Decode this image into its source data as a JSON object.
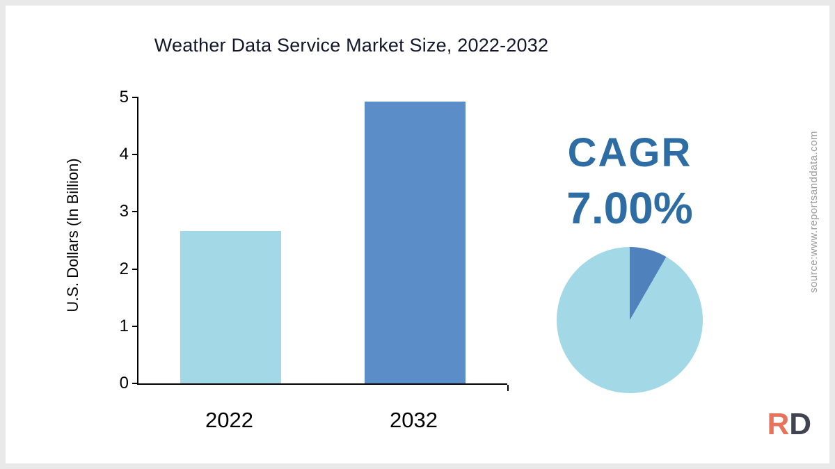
{
  "chart_data": {
    "type": "bar",
    "title": "Weather Data Service Market Size, 2022-2032",
    "categories": [
      "2022",
      "2032"
    ],
    "values": [
      2.67,
      4.93
    ],
    "xlabel": "",
    "ylabel": "U.S. Dollars (In Billion)",
    "ylim": [
      0,
      5
    ],
    "yticks": [
      0,
      1,
      2,
      3,
      4,
      5
    ],
    "bar_colors": [
      "#a3d8e6",
      "#5b8dc8"
    ],
    "grid": false,
    "legend": "none"
  },
  "cagr": {
    "label": "CAGR",
    "value": "7.00%",
    "percent": 7,
    "text_color": "#2e6ca4"
  },
  "pie": {
    "slice_degrees": 30,
    "slice_color": "#4f81bd",
    "rest_color": "#a3d8e6"
  },
  "source": "source:www.reportsanddata.com",
  "logo": {
    "letter_r": "R",
    "letter_d": "D"
  }
}
